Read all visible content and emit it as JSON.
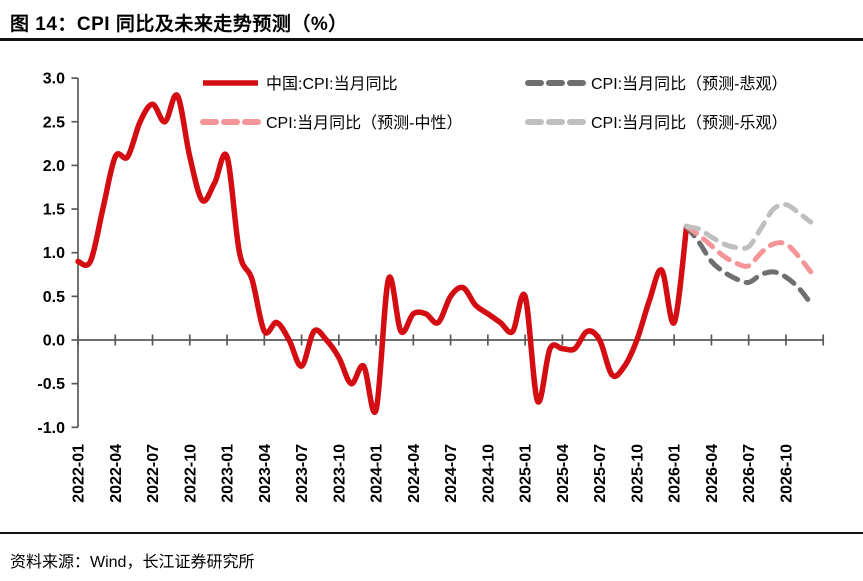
{
  "header": {
    "title": "图 14：CPI 同比及未来走势预测（%）"
  },
  "footer": {
    "source": "资料来源：Wind，长江证券研究所"
  },
  "colors": {
    "actual": "#d30d12",
    "neutral": "#f59597",
    "pessimistic": "#6f6f6f",
    "optimistic": "#bfbfbf",
    "axis": "#595959",
    "text": "#000000"
  },
  "chart_data": {
    "type": "line",
    "title": "图 14：CPI 同比及未来走势预测（%）",
    "xlabel": "",
    "ylabel": "",
    "ylim": [
      -1.0,
      3.0
    ],
    "ytick_step": 0.5,
    "grid": false,
    "legend_position": "top-inside-2col",
    "categories": [
      "2022-01",
      "2022-02",
      "2022-03",
      "2022-04",
      "2022-05",
      "2022-06",
      "2022-07",
      "2022-08",
      "2022-09",
      "2022-10",
      "2022-11",
      "2022-12",
      "2023-01",
      "2023-02",
      "2023-03",
      "2023-04",
      "2023-05",
      "2023-06",
      "2023-07",
      "2023-08",
      "2023-09",
      "2023-10",
      "2023-11",
      "2023-12",
      "2024-01",
      "2024-02",
      "2024-03",
      "2024-04",
      "2024-05",
      "2024-06",
      "2024-07",
      "2024-08",
      "2024-09",
      "2024-10",
      "2024-11",
      "2024-12",
      "2025-01",
      "2025-02",
      "2025-03",
      "2025-04",
      "2025-05",
      "2025-06",
      "2025-07",
      "2025-08",
      "2025-09",
      "2025-10",
      "2025-11",
      "2025-12",
      "2026-01",
      "2026-02",
      "2026-03",
      "2026-04",
      "2026-05",
      "2026-06",
      "2026-07",
      "2026-08",
      "2026-09",
      "2026-10",
      "2026-11",
      "2026-12"
    ],
    "x_tick_labels": [
      "2022-01",
      "2022-04",
      "2022-07",
      "2022-10",
      "2023-01",
      "2023-04",
      "2023-07",
      "2023-10",
      "2024-01",
      "2024-04",
      "2024-07",
      "2024-10",
      "2025-01",
      "2025-04",
      "2025-07",
      "2025-10",
      "2026-01",
      "2026-04",
      "2026-07",
      "2026-10"
    ],
    "series": [
      {
        "name": "中国:CPI:当月同比",
        "style": "solid",
        "color_key": "actual",
        "start_index": 0,
        "values": [
          0.9,
          0.9,
          1.5,
          2.1,
          2.1,
          2.5,
          2.7,
          2.5,
          2.8,
          2.1,
          1.6,
          1.8,
          2.1,
          1.0,
          0.7,
          0.1,
          0.2,
          0.0,
          -0.3,
          0.1,
          0.0,
          -0.2,
          -0.5,
          -0.3,
          -0.8,
          0.7,
          0.1,
          0.3,
          0.3,
          0.2,
          0.5,
          0.6,
          0.4,
          0.3,
          0.2,
          0.1,
          0.5,
          -0.7,
          -0.1,
          -0.1,
          -0.1,
          0.1,
          0.0,
          -0.4,
          -0.3,
          0.0,
          0.45,
          0.8,
          0.2,
          1.3
        ]
      },
      {
        "name": "CPI:当月同比（预测-悲观）",
        "style": "dashed",
        "color_key": "pessimistic",
        "start_index": 49,
        "values": [
          1.3,
          1.12,
          0.9,
          0.78,
          0.7,
          0.66,
          0.75,
          0.78,
          0.72,
          0.6,
          0.42
        ]
      },
      {
        "name": "CPI:当月同比（预测-中性）",
        "style": "dashed",
        "color_key": "neutral",
        "start_index": 49,
        "values": [
          1.3,
          1.2,
          1.08,
          0.96,
          0.88,
          0.85,
          1.0,
          1.1,
          1.1,
          0.96,
          0.78
        ]
      },
      {
        "name": "CPI:当月同比（预测-乐观）",
        "style": "dashed",
        "color_key": "optimistic",
        "start_index": 49,
        "values": [
          1.3,
          1.27,
          1.18,
          1.1,
          1.06,
          1.07,
          1.28,
          1.5,
          1.55,
          1.46,
          1.35
        ]
      }
    ],
    "legend_order_row_major": [
      "中国:CPI:当月同比",
      "CPI:当月同比（预测-悲观）",
      "CPI:当月同比（预测-中性）",
      "CPI:当月同比（预测-乐观）"
    ]
  }
}
